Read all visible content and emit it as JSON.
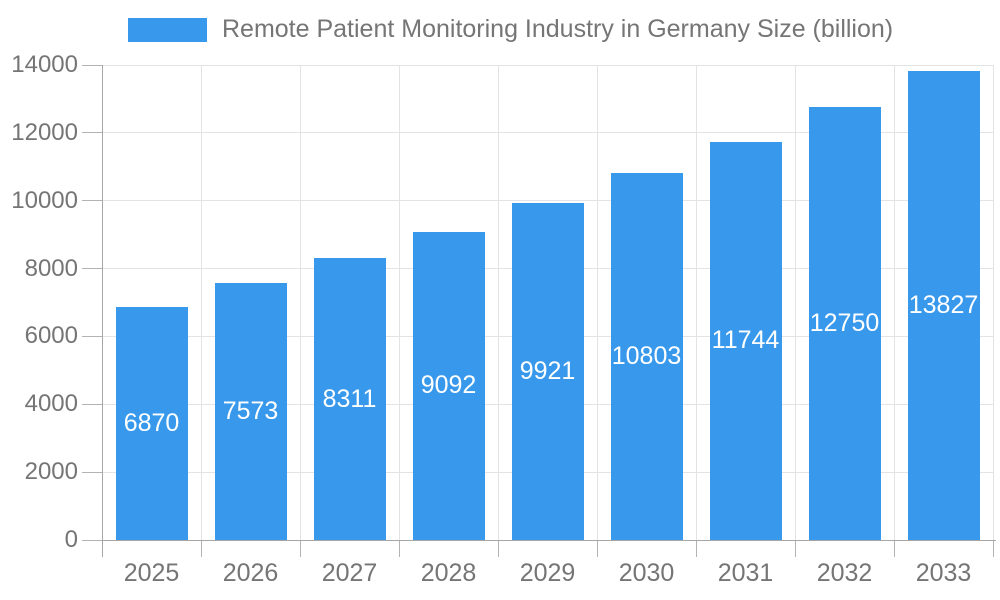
{
  "chart_data": {
    "type": "bar",
    "title": "Remote Patient Monitoring Industry in Germany Size (billion)",
    "categories": [
      "2025",
      "2026",
      "2027",
      "2028",
      "2029",
      "2030",
      "2031",
      "2032",
      "2033"
    ],
    "values": [
      6870,
      7573,
      8311,
      9092,
      9921,
      10803,
      11744,
      12750,
      13827
    ],
    "xlabel": "",
    "ylabel": "",
    "ylim": [
      0,
      14000
    ],
    "ytick_step": 2000,
    "yticks": [
      0,
      2000,
      4000,
      6000,
      8000,
      10000,
      12000,
      14000
    ],
    "grid": true,
    "legend_position": "top",
    "value_labels_position": "inside-center"
  },
  "colors": {
    "bar": "#3899ec",
    "value_label": "#ffffff",
    "axis_text": "#757575",
    "legend_text": "#757575",
    "grid_line": "#e3e3e3",
    "axis_line": "#a6a6a6",
    "tick_line": "#b3b3b3",
    "background": "#ffffff"
  }
}
